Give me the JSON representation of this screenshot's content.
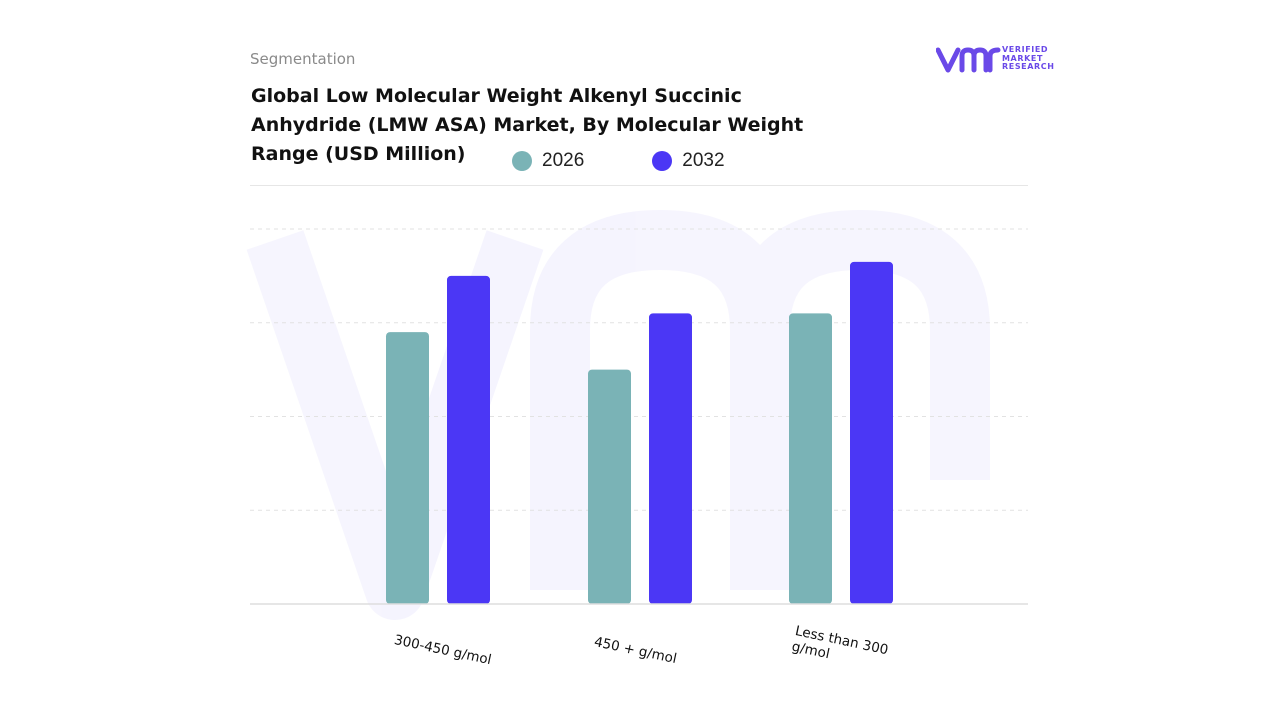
{
  "header": {
    "segment_label": "Segmentation",
    "title": "Global Low Molecular Weight Alkenyl Succinic Anhydride (LMW ASA) Market, By Molecular Weight Range (USD Million)"
  },
  "logo": {
    "line1": "VERIFIED",
    "line2": "MARKET",
    "line3": "RESEARCH",
    "color": "#6a49e8"
  },
  "chart_data": {
    "type": "bar",
    "title": "Global Low Molecular Weight Alkenyl Succinic Anhydride (LMW ASA) Market, By Molecular Weight Range (USD Million)",
    "categories": [
      "300-450 g/mol",
      "450 + g/mol",
      "Less than 300 g/mol"
    ],
    "series": [
      {
        "name": "2026",
        "color": "#7ab3b6",
        "values": [
          2.9,
          2.5,
          3.1
        ]
      },
      {
        "name": "2032",
        "color": "#4b37f5",
        "values": [
          3.5,
          3.1,
          3.65
        ]
      }
    ],
    "ylim": [
      0,
      4
    ],
    "grid": true,
    "legend_position": "top",
    "xlabel": "",
    "ylabel": ""
  }
}
